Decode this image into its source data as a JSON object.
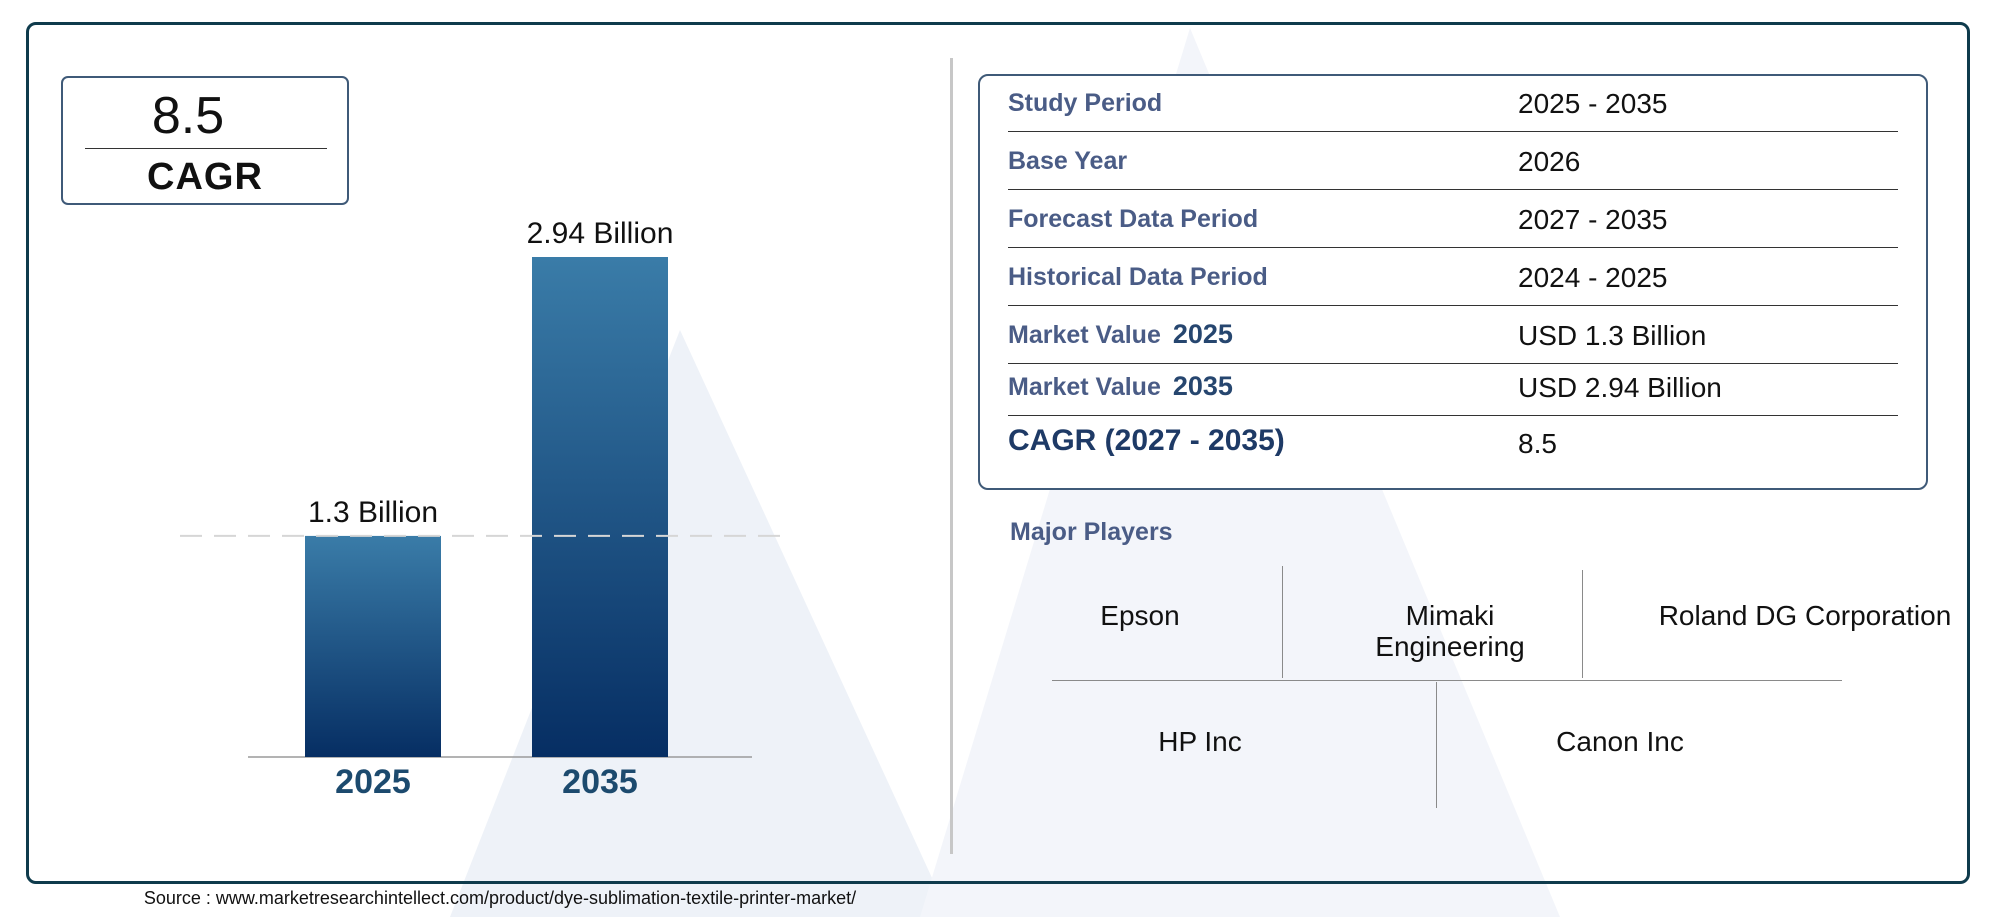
{
  "cagr_box": {
    "value": "8.5",
    "label": "CAGR"
  },
  "chart_data": {
    "type": "bar",
    "categories": [
      "2025",
      "2035"
    ],
    "values": [
      1.3,
      2.94
    ],
    "data_labels": [
      "1.3 Billion",
      "2.94 Billion"
    ],
    "ylim": [
      0,
      3
    ],
    "grid": false,
    "reference_line": {
      "value": 1.3,
      "style": "dashed"
    },
    "colors": {
      "bar_top": "#3a7ca8",
      "bar_bottom": "#062e63",
      "axis_label": "#1c4a6e"
    }
  },
  "info_table": {
    "rows": [
      {
        "label": "Study Period",
        "value": "2025 - 2035"
      },
      {
        "label": "Base Year",
        "value": "2026"
      },
      {
        "label": "Forecast Data Period",
        "value": "2027 - 2035"
      },
      {
        "label": "Historical Data Period",
        "value": "2024 - 2025"
      },
      {
        "label": "Market Value",
        "year": "2025",
        "value": "USD 1.3 Billion"
      },
      {
        "label": "Market Value",
        "year": "2035",
        "value": "USD 2.94 Billion"
      },
      {
        "label": "CAGR (2027 - 2035)",
        "value": "8.5"
      }
    ]
  },
  "major_players": {
    "title": "Major Players",
    "names": [
      "Epson",
      "Mimaki Engineering",
      "Roland DG Corporation",
      "HP Inc",
      "Canon Inc"
    ]
  },
  "source": "Source : www.marketresearchintellect.com/product/dye-sublimation-textile-printer-market/"
}
